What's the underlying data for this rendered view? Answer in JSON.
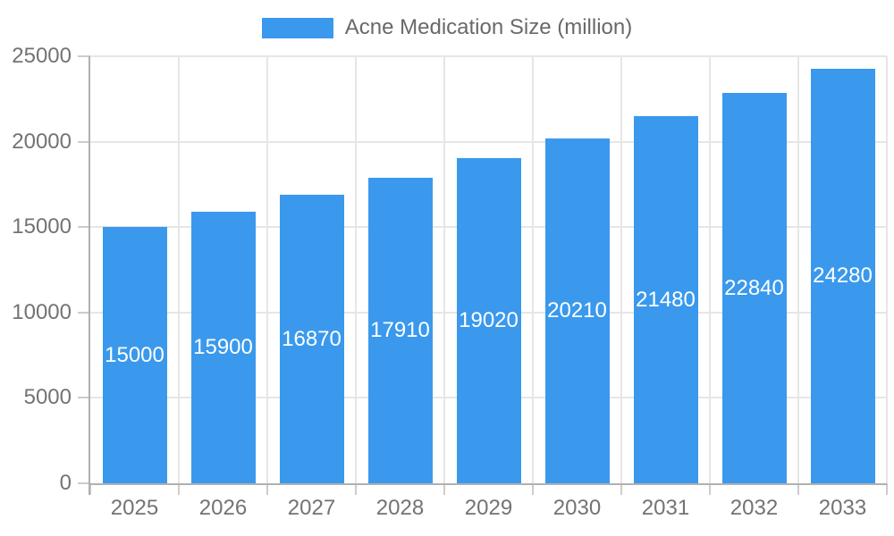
{
  "chart_data": {
    "type": "bar",
    "title": "",
    "categories": [
      "2025",
      "2026",
      "2027",
      "2028",
      "2029",
      "2030",
      "2031",
      "2032",
      "2033"
    ],
    "series": [
      {
        "name": "Acne Medication Size (million)",
        "values": [
          15000,
          15900,
          16870,
          17910,
          19020,
          20210,
          21480,
          22840,
          24280
        ]
      }
    ],
    "xlabel": "",
    "ylabel": "",
    "ylim": [
      0,
      25000
    ],
    "yticks": [
      0,
      5000,
      10000,
      15000,
      20000,
      25000
    ],
    "grid": true,
    "legend_position": "top-center",
    "value_labels": "inside-center",
    "colors": {
      "bar": "#3a99ec",
      "grid": "#e6e6e6",
      "axis": "#b0b0b0",
      "tick": "#cccccc",
      "axis_text": "#737373",
      "legend_text": "#696969",
      "bar_label_text": "#ffffff",
      "background": "#ffffff"
    }
  }
}
